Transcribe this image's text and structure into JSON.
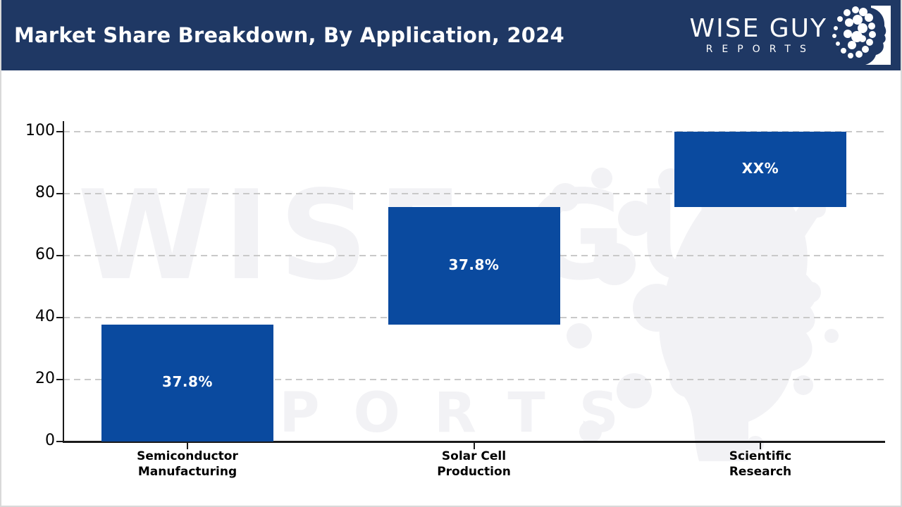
{
  "header": {
    "title": "Market Share Breakdown, By Application, 2024",
    "logo": {
      "line1": "WISE GUY",
      "line2": "REPORTS"
    }
  },
  "watermark": {
    "line1": "WISE GUY",
    "line2": "REPORTS"
  },
  "chart_data": {
    "type": "bar",
    "subtype": "waterfall",
    "title": "Market Share Breakdown, By Application, 2024",
    "categories": [
      "Semiconductor Manufacturing",
      "Solar Cell Production",
      "Scientific Research"
    ],
    "category_lines": [
      [
        "Semiconductor",
        "Manufacturing"
      ],
      [
        "Solar Cell",
        "Production"
      ],
      [
        "Scientific",
        "Research"
      ]
    ],
    "bars": [
      {
        "category": "Semiconductor Manufacturing",
        "start": 0,
        "end": 37.8,
        "label": "37.8%"
      },
      {
        "category": "Solar Cell Production",
        "start": 37.8,
        "end": 75.6,
        "label": "37.8%"
      },
      {
        "category": "Scientific Research",
        "start": 75.6,
        "end": 100,
        "label": "XX%"
      }
    ],
    "xlabel": "",
    "ylabel": "",
    "yticks": [
      0,
      20,
      40,
      60,
      80,
      100
    ],
    "ylim": [
      0,
      100
    ],
    "grid": "horizontal-dashed",
    "legend": "none",
    "colors": {
      "bar": "#0a4a9f",
      "header_bg": "#1f3864",
      "grid": "#c9c9c9",
      "axis": "#1a1a1a",
      "bar_label": "#ffffff",
      "tick_label": "#000000",
      "watermark": "#f2f2f5",
      "page_border": "#d9d9d9"
    }
  }
}
